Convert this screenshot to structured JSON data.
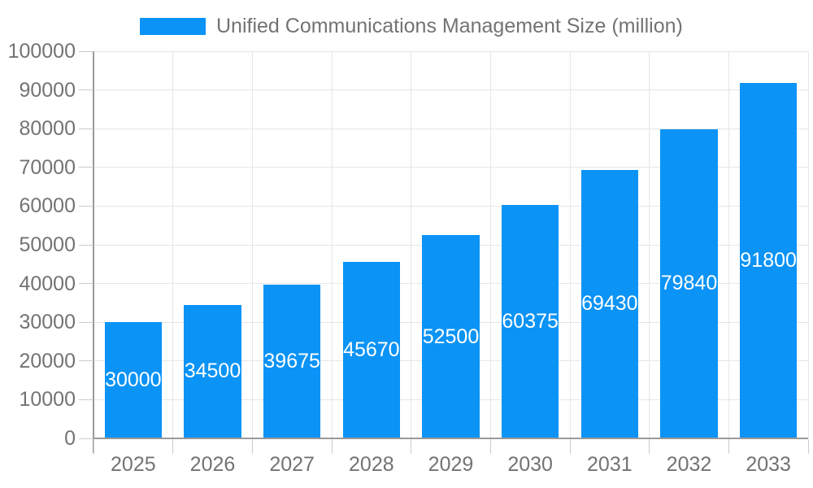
{
  "chart_data": {
    "type": "bar",
    "title": "Unified Communications Management Size (million)",
    "legend_position": "top",
    "grid": true,
    "categories": [
      "2025",
      "2026",
      "2027",
      "2028",
      "2029",
      "2030",
      "2031",
      "2032",
      "2033"
    ],
    "values": [
      30000,
      34500,
      39675,
      45670,
      52500,
      60375,
      69430,
      79840,
      91800
    ],
    "value_labels": [
      "30000",
      "34500",
      "39675",
      "45670",
      "52500",
      "60375",
      "69430",
      "79840",
      "91800"
    ],
    "xlabel": "",
    "ylabel": "",
    "ylim": [
      0,
      100000
    ],
    "y_ticks": [
      "0",
      "10000",
      "20000",
      "30000",
      "40000",
      "50000",
      "60000",
      "70000",
      "80000",
      "90000",
      "100000"
    ],
    "colors": {
      "bar": "#0b93f6",
      "bar_label": "#ffffff",
      "axis_label": "#737373",
      "grid_line": "#e6e6e6",
      "tick_line": "#cccccc",
      "axis_line": "#999999",
      "background": "#ffffff"
    }
  }
}
